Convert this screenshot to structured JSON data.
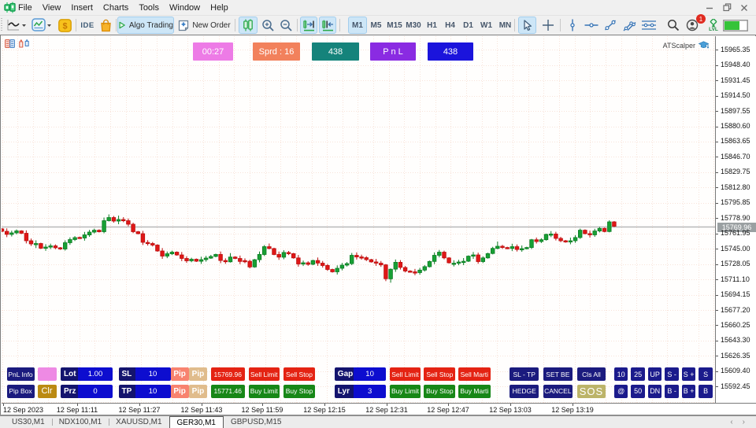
{
  "app": {
    "logo_icon": "mt5-logo",
    "window_controls": {
      "minimize": "–",
      "restore": "□",
      "close": "×"
    }
  },
  "menubar": {
    "items": [
      "File",
      "View",
      "Insert",
      "Charts",
      "Tools",
      "Window",
      "Help"
    ]
  },
  "toolbar": {
    "ide_label": "IDE",
    "algo_trading_label": "Algo Trading",
    "new_order_label": "New Order",
    "timeframes": [
      {
        "label": "M1",
        "active": true
      },
      {
        "label": "M5",
        "active": false
      },
      {
        "label": "M15",
        "active": false
      },
      {
        "label": "M30",
        "active": false
      },
      {
        "label": "H1",
        "active": false
      },
      {
        "label": "H4",
        "active": false
      },
      {
        "label": "D1",
        "active": false
      },
      {
        "label": "W1",
        "active": false
      },
      {
        "label": "MN",
        "active": false
      }
    ],
    "notification_count": "1",
    "lvl_label": "LVL"
  },
  "chart": {
    "watermark": "ATScalper",
    "info_buttons": [
      {
        "label": "00:27",
        "color": "#ed7be6"
      },
      {
        "label": "Sprd : 16",
        "color": "#f2815c"
      },
      {
        "label": "438",
        "color": "#15837b"
      },
      {
        "label": "P n L",
        "color": "#8a2be2"
      },
      {
        "label": "438",
        "color": "#1b14dc"
      }
    ],
    "current_price_tag": "15769.96",
    "price_labels": [
      "15965.35",
      "15948.40",
      "15931.45",
      "15914.50",
      "15897.55",
      "15880.60",
      "15863.65",
      "15846.70",
      "15829.75",
      "15812.80",
      "15795.85",
      "15778.90",
      "15761.95",
      "15745.00",
      "15728.05",
      "15711.10",
      "15694.15",
      "15677.20",
      "15660.25",
      "15643.30",
      "15626.35",
      "15609.40",
      "15592.45"
    ],
    "time_labels": [
      "12 Sep 2023",
      "12 Sep 11:11",
      "12 Sep 11:27",
      "12 Sep 11:43",
      "12 Sep 11:59",
      "12 Sep 12:15",
      "12 Sep 12:31",
      "12 Sep 12:47",
      "12 Sep 13:03",
      "12 Sep 13:19"
    ]
  },
  "chart_data": {
    "type": "candlestick",
    "symbol": "GER30",
    "timeframe": "M1",
    "bid": 15769.96,
    "y_axis": {
      "top": 15965.35,
      "step": 16.95,
      "bottom": 15592.45
    },
    "colors": {
      "up": "#18a035",
      "up_dark": "#0c7d24",
      "down": "#e01717",
      "down_dark": "#bc0f0f",
      "grid": "#f8e3d9",
      "bid_line": "#b8b8b8"
    },
    "candles": [
      [
        15767.0,
        15767.8,
        15763.5,
        15764.3
      ],
      [
        15764.3,
        15767.6,
        15757.9,
        15760.9
      ],
      [
        15760.9,
        15765.0,
        15758.6,
        15762.6
      ],
      [
        15762.6,
        15766.4,
        15761.0,
        15764.8
      ],
      [
        15764.8,
        15765.6,
        15761.3,
        15762.2
      ],
      [
        15762.2,
        15765.4,
        15750.9,
        15753.9
      ],
      [
        15753.9,
        15756.3,
        15748.1,
        15750.4
      ],
      [
        15750.1,
        15754.3,
        15745.8,
        15750.8
      ],
      [
        15750.8,
        15751.7,
        15744.7,
        15745.6
      ],
      [
        15745.6,
        15750.1,
        15742.7,
        15746.9
      ],
      [
        15746.9,
        15750.7,
        15744.7,
        15748.2
      ],
      [
        15748.2,
        15749.9,
        15744.5,
        15746.1
      ],
      [
        15746.1,
        15746.9,
        15743.9,
        15744.7
      ],
      [
        15744.7,
        15754.3,
        15743.0,
        15751.7
      ],
      [
        15751.7,
        15757.6,
        15749.4,
        15755.2
      ],
      [
        15755.2,
        15759.0,
        15753.6,
        15757.4
      ],
      [
        15757.6,
        15758.5,
        15756.1,
        15756.9
      ],
      [
        15756.9,
        15763.6,
        15754.0,
        15760.4
      ],
      [
        15760.4,
        15765.9,
        15758.2,
        15763.5
      ],
      [
        15763.5,
        15767.3,
        15761.9,
        15765.6
      ],
      [
        15765.6,
        15766.5,
        15763.0,
        15763.9
      ],
      [
        15763.9,
        15779.6,
        15762.2,
        15776.1
      ],
      [
        15776.1,
        15783.1,
        15775.2,
        15779.6
      ],
      [
        15779.6,
        15781.3,
        15773.9,
        15775.7
      ],
      [
        15775.7,
        15781.8,
        15772.2,
        15777.4
      ],
      [
        15777.4,
        15780.0,
        15774.4,
        15776.1
      ],
      [
        15776.1,
        15778.5,
        15769.9,
        15772.2
      ],
      [
        15772.2,
        15773.8,
        15762.3,
        15763.9
      ],
      [
        15763.9,
        15764.8,
        15760.9,
        15761.7
      ],
      [
        15761.7,
        15764.9,
        15749.2,
        15752.1
      ],
      [
        15752.1,
        15754.6,
        15748.6,
        15750.8
      ],
      [
        15750.8,
        15752.5,
        15747.5,
        15749.1
      ],
      [
        15749.1,
        15750.0,
        15741.7,
        15742.6
      ],
      [
        15742.6,
        15745.8,
        15733.9,
        15736.9
      ],
      [
        15736.9,
        15742.0,
        15734.6,
        15739.5
      ],
      [
        15739.5,
        15742.9,
        15738.0,
        15741.3
      ],
      [
        15741.3,
        15742.1,
        15737.3,
        15738.2
      ],
      [
        15738.2,
        15741.4,
        15731.3,
        15734.3
      ],
      [
        15734.3,
        15736.7,
        15729.4,
        15731.7
      ],
      [
        15731.7,
        15735.1,
        15730.1,
        15733.4
      ],
      [
        15733.4,
        15734.3,
        15730.4,
        15731.2
      ],
      [
        15731.2,
        15736.2,
        15728.3,
        15733.0
      ],
      [
        15733.0,
        15737.2,
        15730.7,
        15734.7
      ],
      [
        15734.7,
        15738.2,
        15733.9,
        15736.5
      ],
      [
        15736.5,
        15739.6,
        15735.6,
        15738.7
      ],
      [
        15738.7,
        15742.0,
        15729.1,
        15732.0
      ],
      [
        15732.0,
        15734.5,
        15728.4,
        15730.6
      ],
      [
        15730.6,
        15740.2,
        15729.8,
        15735.9
      ],
      [
        15735.9,
        15736.7,
        15733.4,
        15734.3
      ],
      [
        15734.3,
        15737.5,
        15728.0,
        15731.0
      ],
      [
        15731.9,
        15734.4,
        15729.0,
        15731.2
      ],
      [
        15731.2,
        15732.9,
        15723.3,
        15724.9
      ],
      [
        15724.9,
        15733.8,
        15724.0,
        15732.9
      ],
      [
        15732.9,
        15742.0,
        15729.9,
        15738.7
      ],
      [
        15738.7,
        15749.1,
        15737.0,
        15747.4
      ],
      [
        15747.4,
        15750.8,
        15744.4,
        15745.3
      ],
      [
        15745.3,
        15746.1,
        15737.9,
        15738.7
      ],
      [
        15738.7,
        15742.0,
        15732.7,
        15735.7
      ],
      [
        15735.7,
        15743.4,
        15733.4,
        15740.9
      ],
      [
        15740.9,
        15742.6,
        15738.0,
        15739.6
      ],
      [
        15739.6,
        15740.5,
        15734.0,
        15734.9
      ],
      [
        15734.9,
        15738.1,
        15725.2,
        15728.2
      ],
      [
        15728.2,
        15731.9,
        15725.9,
        15729.5
      ],
      [
        15729.5,
        15731.2,
        15726.2,
        15727.8
      ],
      [
        15727.8,
        15732.9,
        15726.9,
        15732.0
      ],
      [
        15732.0,
        15735.3,
        15726.1,
        15729.1
      ],
      [
        15729.1,
        15731.5,
        15724.2,
        15726.5
      ],
      [
        15726.5,
        15728.1,
        15720.5,
        15722.1
      ],
      [
        15722.1,
        15723.0,
        15718.6,
        15719.5
      ],
      [
        15719.5,
        15726.6,
        15716.5,
        15723.4
      ],
      [
        15723.4,
        15729.3,
        15721.1,
        15726.9
      ],
      [
        15726.9,
        15730.3,
        15725.3,
        15728.6
      ],
      [
        15728.6,
        15740.4,
        15726.9,
        15737.8
      ],
      [
        15737.8,
        15741.0,
        15733.1,
        15736.0
      ],
      [
        15736.0,
        15738.5,
        15732.9,
        15735.2
      ],
      [
        15735.2,
        15736.8,
        15731.4,
        15733.0
      ],
      [
        15733.0,
        15733.9,
        15729.7,
        15730.5
      ],
      [
        15730.5,
        15733.8,
        15726.1,
        15729.1
      ],
      [
        15729.1,
        15731.5,
        15725.0,
        15727.2
      ],
      [
        15727.2,
        15728.1,
        15709.2,
        15711.8
      ],
      [
        15711.8,
        15723.2,
        15707.5,
        15722.4
      ],
      [
        15722.4,
        15733.2,
        15719.4,
        15730.0
      ],
      [
        15730.0,
        15732.5,
        15722.0,
        15724.3
      ],
      [
        15724.3,
        15725.9,
        15718.9,
        15720.4
      ],
      [
        15720.4,
        15721.3,
        15718.6,
        15719.5
      ],
      [
        15719.5,
        15722.7,
        15715.7,
        15718.6
      ],
      [
        15718.6,
        15723.8,
        15716.4,
        15721.4
      ],
      [
        15721.4,
        15726.9,
        15719.8,
        15725.2
      ],
      [
        15725.2,
        15731.9,
        15724.4,
        15731.0
      ],
      [
        15731.0,
        15741.0,
        15728.0,
        15737.8
      ],
      [
        15737.8,
        15743.7,
        15735.5,
        15741.3
      ],
      [
        15741.3,
        15742.9,
        15733.3,
        15734.9
      ],
      [
        15734.9,
        15735.8,
        15728.6,
        15729.5
      ],
      [
        15728.4,
        15732.3,
        15725.4,
        15729.1
      ],
      [
        15729.1,
        15732.8,
        15726.8,
        15730.4
      ],
      [
        15730.4,
        15734.7,
        15726.9,
        15731.2
      ],
      [
        15731.2,
        15737.7,
        15730.4,
        15736.8
      ],
      [
        15736.8,
        15741.4,
        15733.9,
        15738.2
      ],
      [
        15738.2,
        15740.7,
        15728.5,
        15730.8
      ],
      [
        15730.8,
        15736.6,
        15729.2,
        15734.9
      ],
      [
        15734.9,
        15740.6,
        15734.0,
        15739.7
      ],
      [
        15739.7,
        15747.2,
        15738.8,
        15745.4
      ],
      [
        15745.4,
        15753.0,
        15744.6,
        15747.8
      ],
      [
        15747.8,
        15749.4,
        15744.8,
        15746.4
      ],
      [
        15746.4,
        15747.3,
        15744.6,
        15745.4
      ],
      [
        15745.4,
        15750.6,
        15742.5,
        15747.4
      ],
      [
        15747.4,
        15749.8,
        15742.0,
        15744.3
      ],
      [
        15744.3,
        15748.7,
        15741.7,
        15745.2
      ],
      [
        15745.2,
        15747.3,
        15744.3,
        15746.4
      ],
      [
        15746.4,
        15755.9,
        15744.7,
        15755.0
      ],
      [
        15755.0,
        15757.5,
        15750.8,
        15753.0
      ],
      [
        15753.0,
        15756.7,
        15751.4,
        15755.0
      ],
      [
        15755.0,
        15761.7,
        15754.1,
        15760.9
      ],
      [
        15760.9,
        15764.6,
        15757.9,
        15761.4
      ],
      [
        15761.4,
        15763.8,
        15754.2,
        15756.5
      ],
      [
        15756.5,
        15758.2,
        15752.3,
        15753.9
      ],
      [
        15753.9,
        15754.8,
        15751.7,
        15752.6
      ],
      [
        15752.6,
        15757.4,
        15750.0,
        15753.9
      ],
      [
        15753.9,
        15760.0,
        15751.6,
        15757.5
      ],
      [
        15757.5,
        15767.3,
        15756.0,
        15765.6
      ],
      [
        15765.6,
        15766.5,
        15760.9,
        15761.8
      ],
      [
        15761.8,
        15765.0,
        15757.5,
        15760.4
      ],
      [
        15760.4,
        15767.1,
        15758.2,
        15764.7
      ],
      [
        15764.7,
        15769.2,
        15763.1,
        15767.6
      ],
      [
        15767.6,
        15768.4,
        15763.2,
        15764.1
      ],
      [
        15764.1,
        15776.5,
        15763.2,
        15774.8
      ],
      [
        15774.8,
        15775.7,
        15769.0,
        15769.9
      ]
    ]
  },
  "panel": {
    "row1": [
      {
        "label": "PnL Info",
        "kind": "navy",
        "name": "pnl-info-button"
      },
      {
        "label": "",
        "kind": "pink",
        "name": "color-swatch-button"
      },
      {
        "label": "Lot",
        "value": "1.00",
        "kind": "pair",
        "name": "lot-field"
      },
      {
        "label": "SL",
        "value": "10",
        "kind": "pair",
        "name": "sl-field"
      },
      {
        "label": "Pip",
        "kind": "salmon",
        "name": "sl-pip-button"
      },
      {
        "label": "Pip",
        "kind": "tan",
        "name": "sl-pip-alt-button"
      },
      {
        "label": "15769.96",
        "kind": "red",
        "name": "sell-price-button"
      },
      {
        "label": "Sell Limit",
        "kind": "red",
        "name": "sell-limit-button"
      },
      {
        "label": "Sell Stop",
        "kind": "red",
        "name": "sell-stop-button"
      },
      {
        "label": "Gap",
        "value": "10",
        "kind": "pair",
        "name": "gap-field"
      },
      {
        "label": "Sell Limit",
        "kind": "red",
        "name": "sell-limit-2-button"
      },
      {
        "label": "Sell Stop",
        "kind": "red",
        "name": "sell-stop-2-button"
      },
      {
        "label": "Sell Marti",
        "kind": "red",
        "name": "sell-marti-button"
      },
      {
        "label": "SL - TP",
        "kind": "navy",
        "name": "sl-tp-button"
      },
      {
        "label": "SET BE",
        "kind": "navy",
        "name": "set-be-button"
      },
      {
        "label": "Cls All",
        "kind": "navy",
        "name": "close-all-button"
      },
      {
        "label": "10",
        "kind": "sq",
        "name": "step-10-button"
      },
      {
        "label": "25",
        "kind": "sq",
        "name": "step-25-button"
      },
      {
        "label": "UP",
        "kind": "sq",
        "name": "up-button"
      },
      {
        "label": "S -",
        "kind": "sq",
        "name": "s-minus-button"
      },
      {
        "label": "S +",
        "kind": "sq",
        "name": "s-plus-button"
      },
      {
        "label": "S",
        "kind": "sq",
        "name": "s-button"
      }
    ],
    "row2": [
      {
        "label": "Pip Box",
        "kind": "navy",
        "name": "pip-box-button"
      },
      {
        "label": "Clr",
        "kind": "gold",
        "name": "clear-button"
      },
      {
        "label": "Prz",
        "value": "0",
        "kind": "pair",
        "name": "prz-field"
      },
      {
        "label": "TP",
        "value": "10",
        "kind": "pair",
        "name": "tp-field"
      },
      {
        "label": "Pip",
        "kind": "salmon",
        "name": "tp-pip-button"
      },
      {
        "label": "Pip",
        "kind": "tan",
        "name": "tp-pip-alt-button"
      },
      {
        "label": "15771.46",
        "kind": "green",
        "name": "buy-price-button"
      },
      {
        "label": "Buy Limit",
        "kind": "green",
        "name": "buy-limit-button"
      },
      {
        "label": "Buy Stop",
        "kind": "green",
        "name": "buy-stop-button"
      },
      {
        "label": "Lyr",
        "value": "3",
        "kind": "pair",
        "name": "lyr-field"
      },
      {
        "label": "Buy Limit",
        "kind": "green",
        "name": "buy-limit-2-button"
      },
      {
        "label": "Buy Stop",
        "kind": "green",
        "name": "buy-stop-2-button"
      },
      {
        "label": "Buy Marti",
        "kind": "green",
        "name": "buy-marti-button"
      },
      {
        "label": "HEDGE",
        "kind": "navy",
        "name": "hedge-button"
      },
      {
        "label": "CANCEL",
        "kind": "navy",
        "name": "cancel-button"
      },
      {
        "label": "SOS",
        "kind": "khaki",
        "name": "sos-button"
      },
      {
        "label": "@",
        "kind": "sq",
        "name": "at-button"
      },
      {
        "label": "50",
        "kind": "sq",
        "name": "step-50-button"
      },
      {
        "label": "DN",
        "kind": "sq",
        "name": "down-button"
      },
      {
        "label": "B -",
        "kind": "sq",
        "name": "b-minus-button"
      },
      {
        "label": "B +",
        "kind": "sq",
        "name": "b-plus-button"
      },
      {
        "label": "B",
        "kind": "sq",
        "name": "b-button"
      }
    ]
  },
  "tabbar": {
    "tabs": [
      {
        "label": "US30,M1",
        "active": false
      },
      {
        "label": "NDX100,M1",
        "active": false
      },
      {
        "label": "XAUUSD,M1",
        "active": false
      },
      {
        "label": "GER30,M1",
        "active": true
      },
      {
        "label": "GBPUSD,M15",
        "active": false
      }
    ],
    "scroll_left": "‹",
    "scroll_right": "›"
  }
}
